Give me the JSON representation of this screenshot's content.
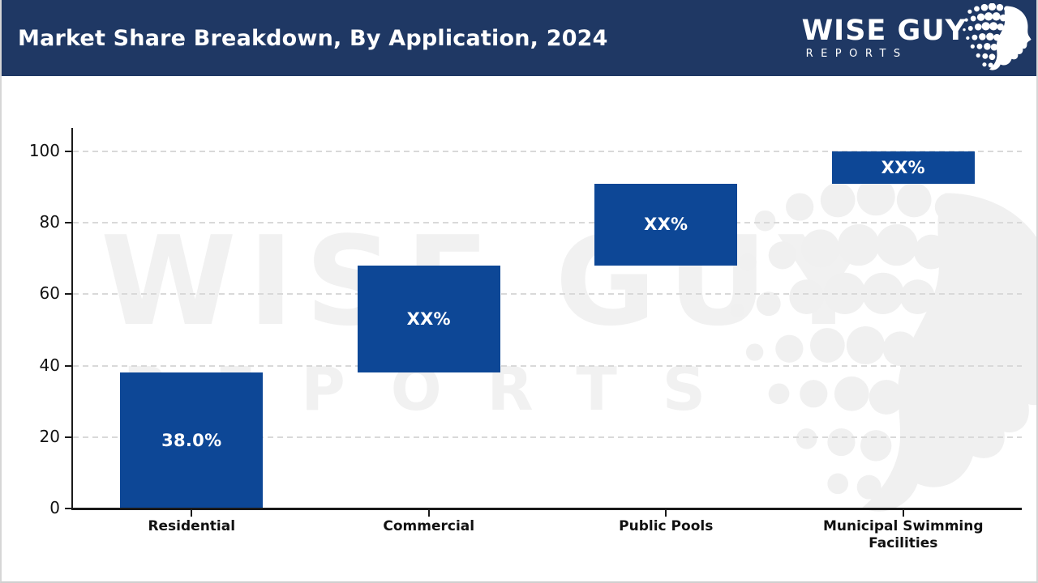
{
  "header": {
    "title": "Market Share Breakdown, By Application, 2024",
    "logo": {
      "line1": "WISE GUY",
      "line2": "REPORTS"
    }
  },
  "watermark": {
    "line1": "WISE GUY",
    "line2": "REPORTS"
  },
  "colors": {
    "header_bg": "#1f3864",
    "bar": "#0d4796",
    "grid": "#d9d9d9",
    "axis": "#1a1a1a",
    "bar_label": "#ffffff",
    "watermark": "#f1f1f1"
  },
  "chart_data": {
    "type": "bar",
    "variant": "waterfall",
    "title": "Market Share Breakdown, By Application, 2024",
    "categories": [
      "Residential",
      "Commercial",
      "Public Pools",
      "Municipal Swimming Facilities"
    ],
    "segments": [
      {
        "category": "Residential",
        "start": 0,
        "end": 38,
        "label": "38.0%"
      },
      {
        "category": "Commercial",
        "start": 38,
        "end": 68,
        "label": "XX%"
      },
      {
        "category": "Public Pools",
        "start": 68,
        "end": 91,
        "label": "XX%"
      },
      {
        "category": "Municipal Swimming Facilities",
        "start": 91,
        "end": 100,
        "label": "XX%"
      }
    ],
    "yticks": [
      0,
      20,
      40,
      60,
      80,
      100
    ],
    "ylim": [
      0,
      100
    ],
    "xlabel": "",
    "ylabel": "",
    "grid": "dashed-horizontal",
    "legend": "none"
  }
}
